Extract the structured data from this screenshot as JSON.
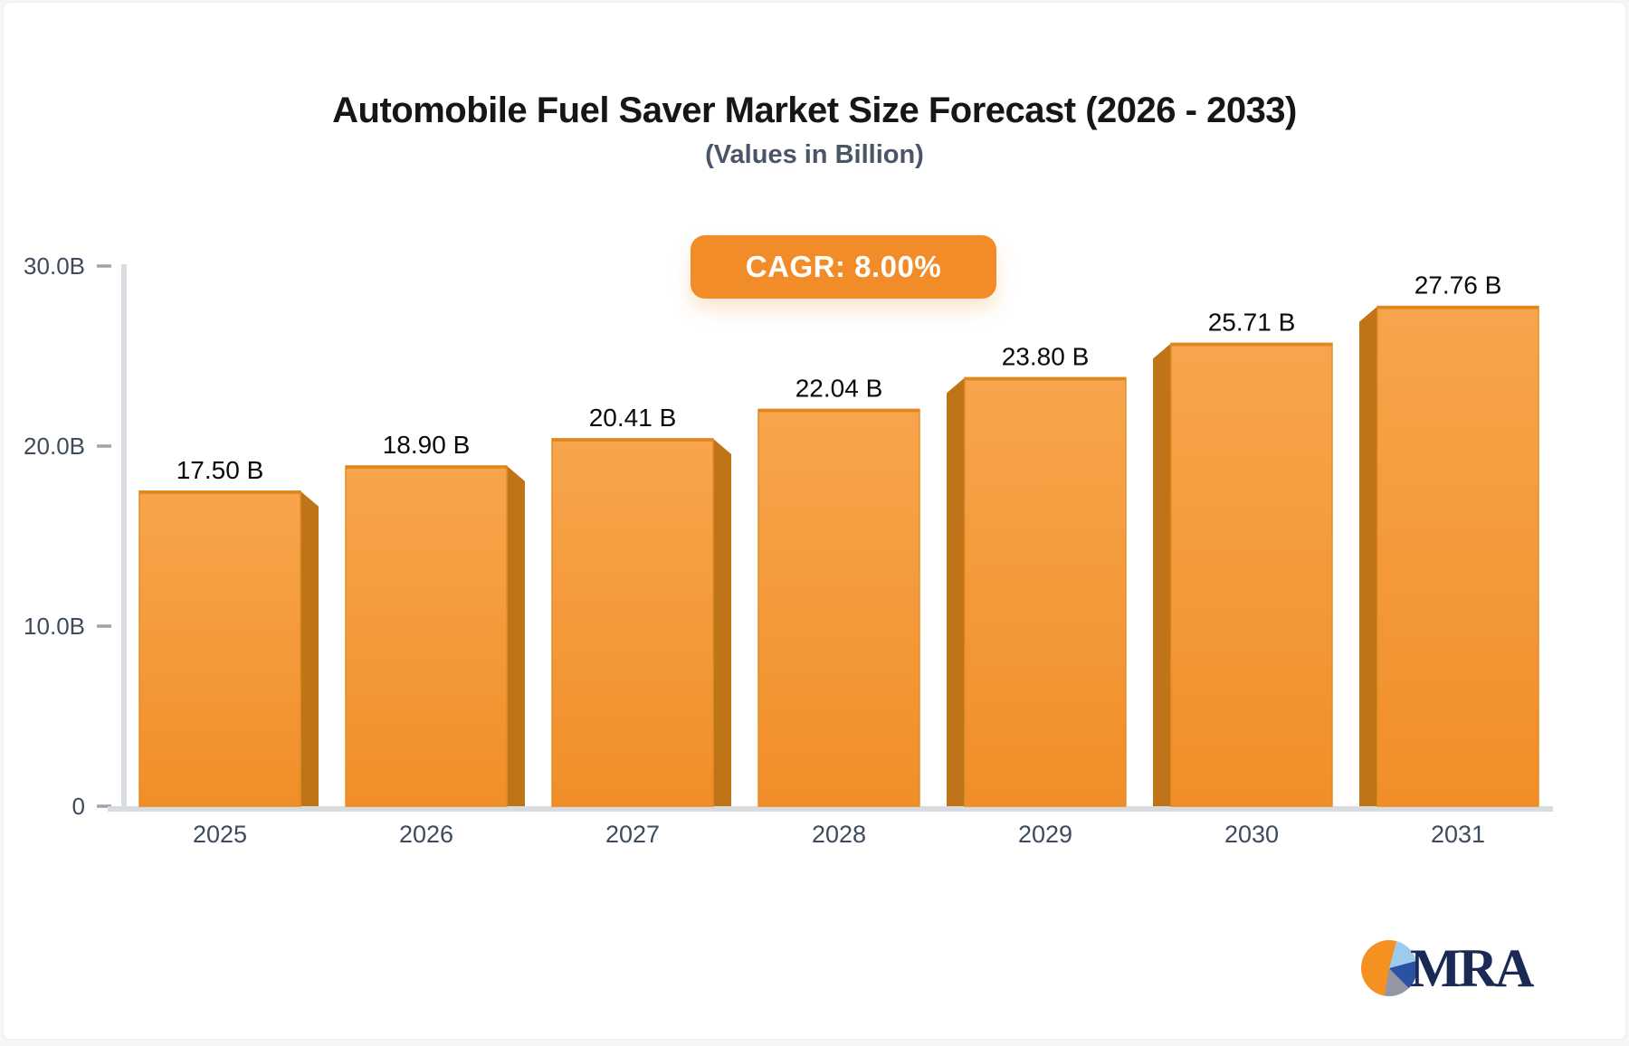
{
  "title": "Automobile Fuel Saver Market Size Forecast (2026 - 2033)",
  "subtitle": "(Values in Billion)",
  "badge": {
    "label": "CAGR: 8.00%"
  },
  "logo": {
    "text": "MRA"
  },
  "chart_data": {
    "type": "bar",
    "title": "Automobile Fuel Saver Market Size Forecast (2026 - 2033)",
    "subtitle": "(Values in Billion)",
    "categories": [
      "2025",
      "2026",
      "2027",
      "2028",
      "2029",
      "2030",
      "2031"
    ],
    "values": [
      17.5,
      18.9,
      20.41,
      22.04,
      23.8,
      25.71,
      27.76
    ],
    "value_labels": [
      "17.50 B",
      "18.90 B",
      "20.41 B",
      "22.04 B",
      "23.80 B",
      "25.71 B",
      "27.76 B"
    ],
    "y_ticks": [
      {
        "value": 0,
        "label": "0"
      },
      {
        "value": 10,
        "label": "10.0B"
      },
      {
        "value": 20,
        "label": "20.0B"
      },
      {
        "value": 30,
        "label": "30.0B"
      }
    ],
    "ylim": [
      0,
      30
    ],
    "xlabel": "",
    "ylabel": "",
    "grid": false,
    "legend": false,
    "bar_style": "3d-extruded-toward-center",
    "cagr": "8.00%"
  },
  "colors": {
    "bar_front_top": "#f7a54d",
    "bar_front_bottom": "#f18e28",
    "bar_front_stroke": "#e38e24",
    "bar_top_edge": "#e08620",
    "bar_side": "#bf7418",
    "axis_line": "#d8dbdf",
    "tick_mark": "#9ca3ab",
    "axis_text": "#3d4b5c",
    "value_text": "#0a0a0a",
    "badge_bg": "#f28c28",
    "badge_text": "#ffffff",
    "logo_navy": "#1b2a55",
    "pie_orange": "#f59120",
    "pie_lightblue": "#9ccbec",
    "pie_darkblue": "#2a52a2",
    "pie_gray": "#9497a3"
  }
}
